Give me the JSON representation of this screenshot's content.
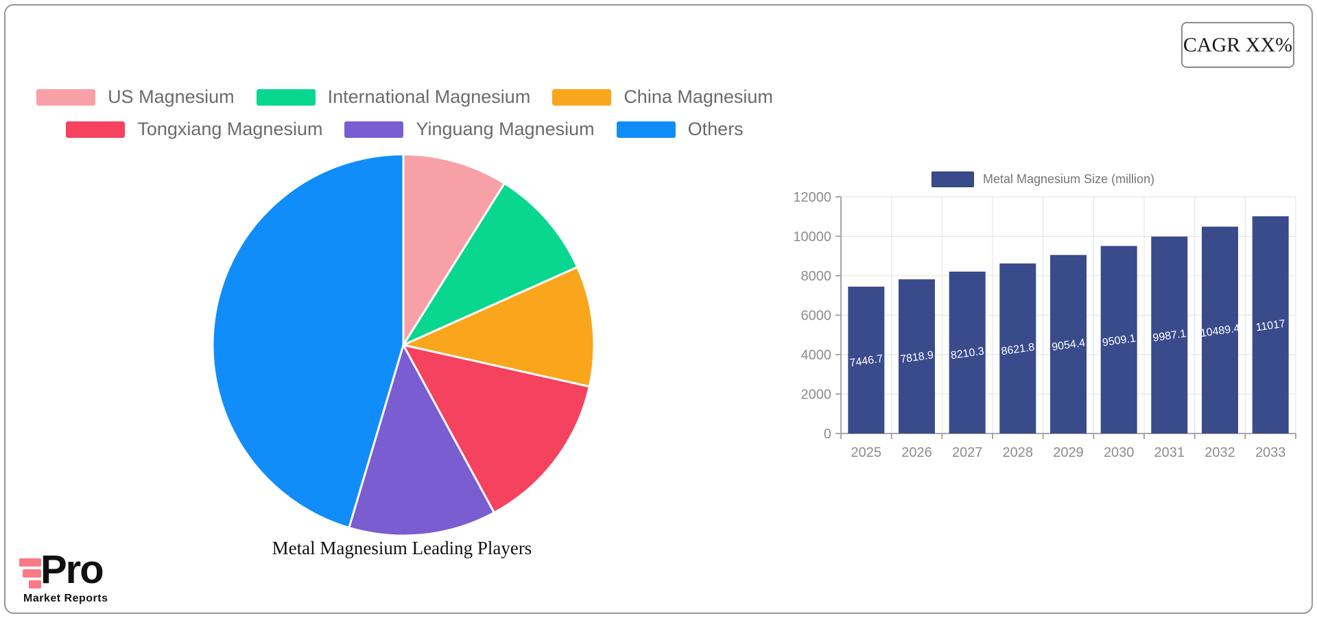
{
  "cagr_badge": {
    "label": "CAGR XX%"
  },
  "logo": {
    "title": "Pro",
    "subtitle": "Market Reports",
    "bar_color": "#fa7a87"
  },
  "colors": {
    "legend_text": "#6b6b6b",
    "axis_text": "#8c8c8c",
    "grid_line": "#e2e2e2",
    "axis_line": "#a6a6a6",
    "bar_fill": "#3a4b8c",
    "bar_swatch_border": "#2e3d77",
    "pie_slice_border": "#ffffff"
  },
  "chart_data": [
    {
      "type": "pie",
      "title": "Metal Magnesium Leading Players",
      "labels": [
        "US Magnesium",
        "International Magnesium",
        "China Magnesium",
        "Tongxiang Magnesium",
        "Yinguang Magnesium",
        "Others"
      ],
      "values": [
        8.9,
        9.4,
        10.2,
        13.6,
        12.5,
        45.4
      ],
      "value_unit": "percent",
      "colors": [
        "#f7a1a7",
        "#0ad78f",
        "#f9a61d",
        "#f4425f",
        "#7a5dd0",
        "#108df9"
      ],
      "start_angle_deg": 0,
      "direction": "clockwise",
      "legend_position": "top-left"
    },
    {
      "type": "bar",
      "title": "Metal Magnesium Size (million)",
      "categories": [
        "2025",
        "2026",
        "2027",
        "2028",
        "2029",
        "2030",
        "2031",
        "2032",
        "2033"
      ],
      "values": [
        7446.7,
        7818.9,
        8210.3,
        8621.8,
        9054.4,
        9509.1,
        9987.1,
        10489.4,
        11017
      ],
      "bar_color": "#3a4b8c",
      "xlabel": "",
      "ylabel": "",
      "ylim": [
        0,
        12000
      ],
      "y_tick_step": 2000,
      "grid": true,
      "legend_position": "top",
      "value_labels": "inside-center-white"
    }
  ]
}
